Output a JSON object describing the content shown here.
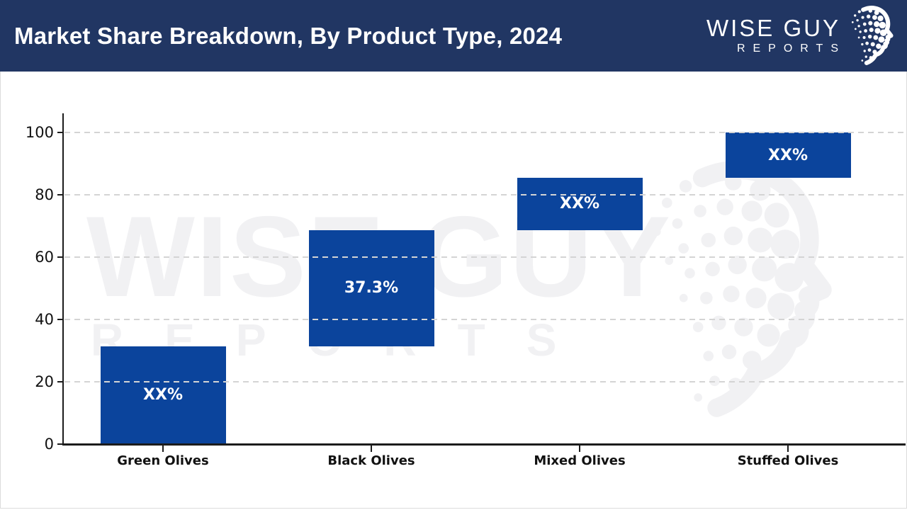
{
  "header": {
    "title": "Market Share Breakdown, By Product Type, 2024",
    "bg_color": "#213663",
    "logo": {
      "line1": "WISE GUY",
      "line2": "REPORTS"
    }
  },
  "watermark": {
    "line1": "WISE GUY",
    "line2": "REPORTS",
    "color": "#f1f1f3"
  },
  "chart_data": {
    "type": "bar",
    "subtype": "waterfall",
    "title": "Market Share Breakdown, By Product Type, 2024",
    "categories": [
      "Green Olives",
      "Black Olives",
      "Mixed Olives",
      "Stuffed Olives"
    ],
    "segments": [
      {
        "category": "Green Olives",
        "start": 0,
        "end": 31.4,
        "value": 31.4,
        "label": "XX%"
      },
      {
        "category": "Black Olives",
        "start": 31.4,
        "end": 68.7,
        "value": 37.3,
        "label": "37.3%"
      },
      {
        "category": "Mixed Olives",
        "start": 68.7,
        "end": 85.4,
        "value": 16.7,
        "label": "XX%"
      },
      {
        "category": "Stuffed Olives",
        "start": 85.4,
        "end": 100,
        "value": 14.6,
        "label": "XX%"
      }
    ],
    "yticks": [
      0,
      20,
      40,
      60,
      80,
      100
    ],
    "ylim": [
      0,
      106
    ],
    "xlabel": "",
    "ylabel": "",
    "grid": "horizontal-dashed",
    "legend": "none",
    "bar_color": "#0b449c",
    "bar_label_color": "#ffffff"
  }
}
